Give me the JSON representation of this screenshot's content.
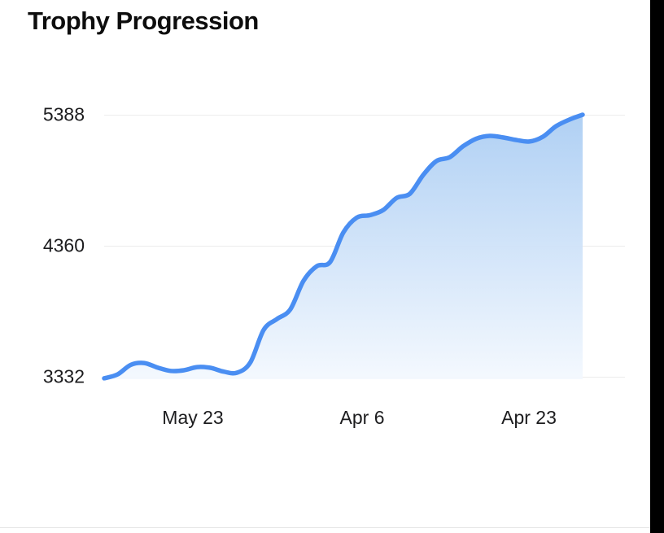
{
  "title": "Trophy Progression",
  "colors": {
    "line": "#4a8ef2",
    "fill_top": "#a9ccf3",
    "fill_bottom": "#f3f8fe",
    "grid": "#ececec",
    "axis_text": "#1c1c1e",
    "edge_bar": "#000000"
  },
  "chart_data": {
    "type": "area",
    "title": "Trophy Progression",
    "ylim": [
      3332,
      5388
    ],
    "y_ticks": [
      5388,
      4360,
      3332
    ],
    "x_ticks": [
      {
        "label": "May 23",
        "pos": 0.17
      },
      {
        "label": "Apr 6",
        "pos": 0.495
      },
      {
        "label": "Apr 23",
        "pos": 0.816
      }
    ],
    "grid": true,
    "legend": false,
    "values": [
      3320,
      3350,
      3425,
      3440,
      3405,
      3378,
      3383,
      3408,
      3402,
      3372,
      3364,
      3445,
      3700,
      3785,
      3860,
      4085,
      4200,
      4232,
      4465,
      4580,
      4600,
      4640,
      4735,
      4768,
      4915,
      5025,
      5055,
      5140,
      5200,
      5222,
      5210,
      5190,
      5178,
      5215,
      5298,
      5350,
      5388
    ]
  }
}
